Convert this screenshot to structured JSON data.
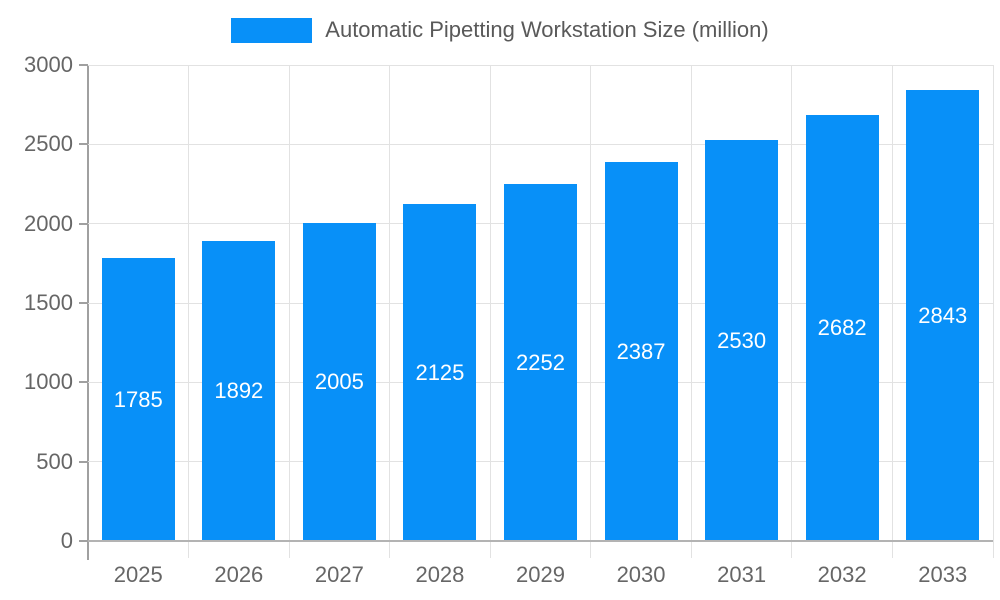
{
  "legend": {
    "label": "Automatic Pipetting Workstation Size (million)"
  },
  "colors": {
    "bar": "#0890F8",
    "grid": "#E2E2E2",
    "axis": "#A0A0A0",
    "baseline": "#B3B3B3",
    "tick_label": "#666666",
    "legend_text": "#595959",
    "value_label": "#FFFFFF",
    "background": "#FFFFFF"
  },
  "chart_data": {
    "type": "bar",
    "title": "Automatic Pipetting Workstation Size (million)",
    "legend_entries": [
      "Automatic Pipetting Workstation Size (million)"
    ],
    "legend_position": "top-center",
    "categories": [
      "2025",
      "2026",
      "2027",
      "2028",
      "2029",
      "2030",
      "2031",
      "2032",
      "2033"
    ],
    "values": [
      1785,
      1892,
      2005,
      2125,
      2252,
      2387,
      2530,
      2682,
      2843
    ],
    "xlabel": "",
    "ylabel": "",
    "ylim": [
      0,
      3000
    ],
    "yticks": [
      0,
      500,
      1000,
      1500,
      2000,
      2500,
      3000
    ],
    "grid": true,
    "value_label_position": "inside-center"
  }
}
